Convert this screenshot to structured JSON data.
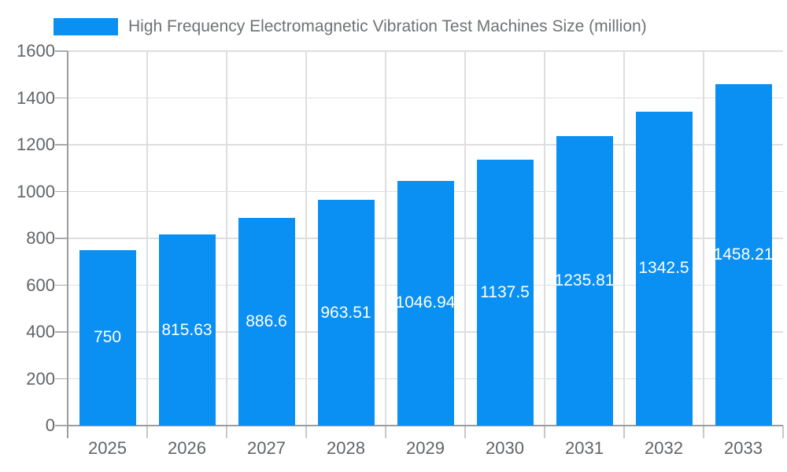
{
  "chart_data": {
    "type": "bar",
    "title": "High Frequency Electromagnetic Vibration Test Machines Size (million)",
    "categories": [
      "2025",
      "2026",
      "2027",
      "2028",
      "2029",
      "2030",
      "2031",
      "2032",
      "2033"
    ],
    "values": [
      750,
      815.63,
      886.6,
      963.51,
      1046.94,
      1137.5,
      1235.81,
      1342.5,
      1458.21
    ],
    "value_labels": [
      "750",
      "815.63",
      "886.6",
      "963.51",
      "1046.94",
      "1137.5",
      "1235.81",
      "1342.5",
      "1458.21"
    ],
    "xlabel": "",
    "ylabel": "",
    "ylim": [
      0,
      1600
    ],
    "ytick_step": 200,
    "ytick_labels": [
      "0",
      "200",
      "400",
      "600",
      "800",
      "1000",
      "1200",
      "1400",
      "1600"
    ],
    "grid": true,
    "legend_position": "top-left",
    "bar_color": "#0a8ff2",
    "value_label_color": "#ffffff"
  },
  "colors": {
    "background": "#ffffff",
    "accent_blue": "#0a8ff2",
    "gridline": "#dcdee0",
    "axis": "#9b9d9f",
    "tick_label": "#616468",
    "title_text": "#6f7274"
  }
}
